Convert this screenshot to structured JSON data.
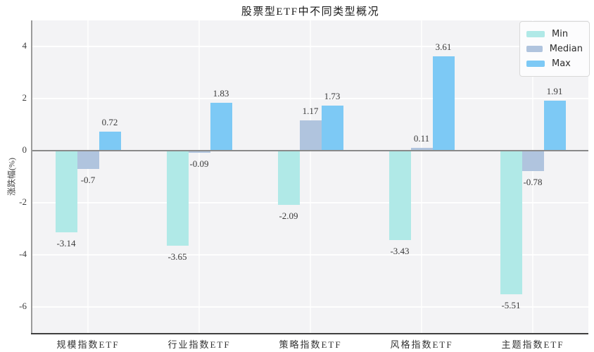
{
  "chart_data": {
    "type": "bar",
    "title": "股票型ETF中不同类型概况",
    "ylabel": "涨跌幅(%)",
    "xlabel": "",
    "categories": [
      "规模指数ETF",
      "行业指数ETF",
      "策略指数ETF",
      "风格指数ETF",
      "主题指数ETF"
    ],
    "series": [
      {
        "name": "Min",
        "color": "#B0E9E7",
        "values": [
          -3.14,
          -3.65,
          -2.09,
          -3.43,
          -5.51
        ]
      },
      {
        "name": "Median",
        "color": "#B0C4DE",
        "values": [
          -0.7,
          -0.09,
          1.17,
          0.11,
          -0.78
        ]
      },
      {
        "name": "Max",
        "color": "#7DC9F5",
        "values": [
          0.72,
          1.83,
          1.73,
          3.61,
          1.91
        ]
      }
    ],
    "yticks": [
      4,
      2,
      0,
      -2,
      -4,
      -6
    ],
    "ylim": [
      -7,
      5
    ],
    "grid": true,
    "legend_position": "upper right",
    "bar_value_labels": true
  },
  "colors": {
    "plot_background": "#F3F3F5",
    "gridline": "#FFFFFF",
    "zero_line": "#8A8A8A",
    "left_spine": "#9B9B9B",
    "bottom_spine": "#3F3F3F",
    "legend_background": "#FCFCFD",
    "legend_border": "#D9D9D9"
  }
}
